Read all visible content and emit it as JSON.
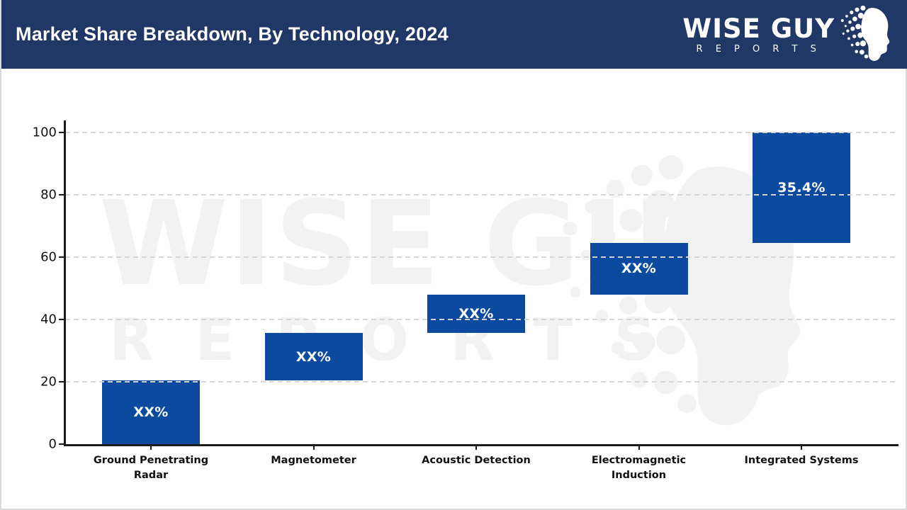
{
  "header": {
    "title": "Market Share Breakdown, By Technology, 2024",
    "brand_line1": "WISE GUY",
    "brand_line2": "R E P O R T S"
  },
  "watermark": {
    "line1": "WISE GUY",
    "line2": "REPORTS"
  },
  "colors": {
    "header_bg": "#1f3866",
    "bar_blue": "#0b4a9f",
    "watermark_gray": "#f2f2f2",
    "grid_gray": "#d6d6d6",
    "axis_black": "#1a1a1a"
  },
  "chart_data": {
    "type": "bar",
    "variant": "waterfall",
    "title": "Market Share Breakdown, By Technology, 2024",
    "categories": [
      "Ground Penetrating\nRadar",
      "Magnetometer",
      "Acoustic Detection",
      "Electromagnetic\nInduction",
      "Integrated Systems"
    ],
    "segments": [
      {
        "category": "Ground Penetrating Radar",
        "start": 0,
        "end": 20.4,
        "label": "XX%"
      },
      {
        "category": "Magnetometer",
        "start": 20.4,
        "end": 35.6,
        "label": "XX%"
      },
      {
        "category": "Acoustic Detection",
        "start": 35.6,
        "end": 47.9,
        "label": "XX%"
      },
      {
        "category": "Electromagnetic Induction",
        "start": 47.9,
        "end": 64.6,
        "label": "XX%"
      },
      {
        "category": "Integrated Systems",
        "start": 64.6,
        "end": 100,
        "label": "35.4%"
      }
    ],
    "y_ticks": [
      0,
      20,
      40,
      60,
      80,
      100
    ],
    "ylim": [
      0,
      104
    ],
    "xlabel": "",
    "ylabel": "",
    "grid": "horizontal-dashed",
    "legend": "none",
    "bar_color": "#0b4a9f",
    "bar_label_color": "#ffffff"
  }
}
